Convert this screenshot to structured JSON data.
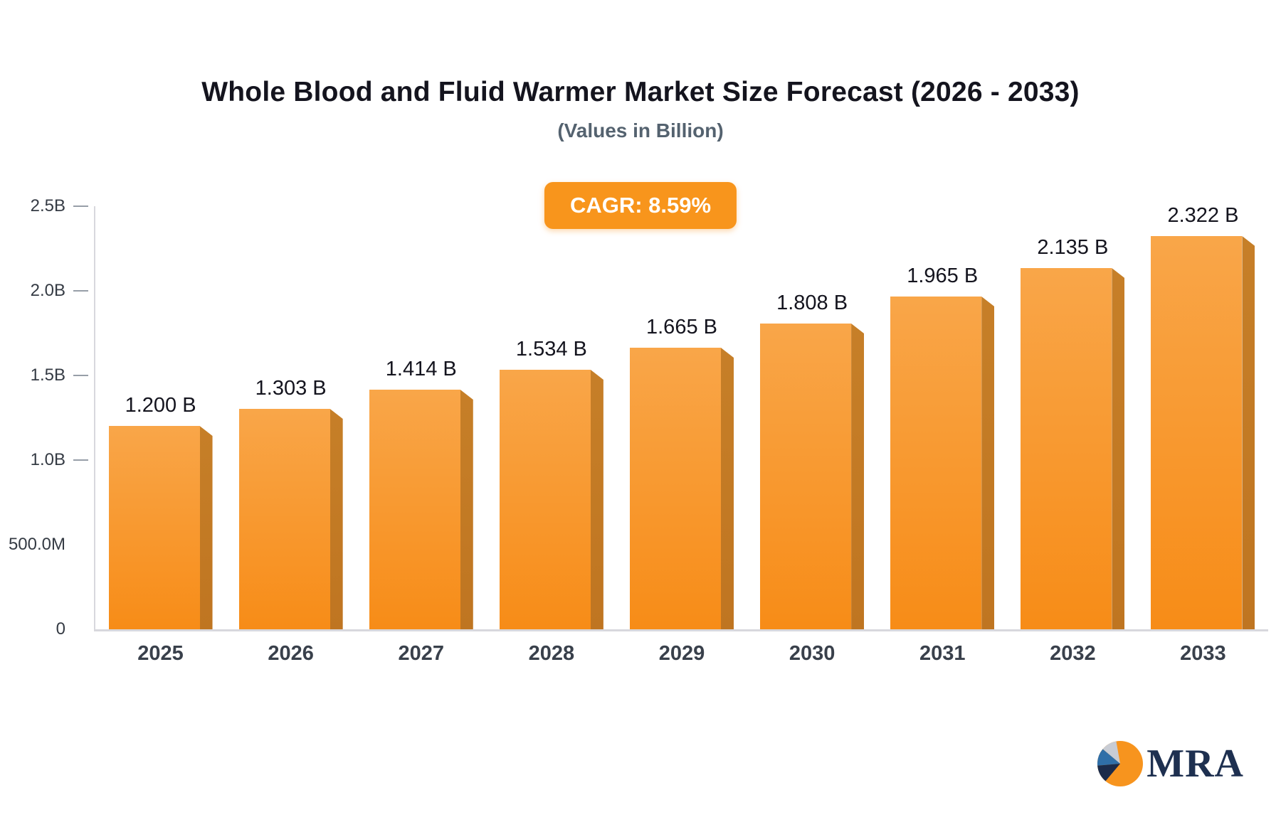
{
  "cagr_badge": {
    "label": "CAGR: 8.59%"
  },
  "logo": {
    "text": "MRA"
  },
  "colors": {
    "bar_top": "#F9A649",
    "bar_bottom": "#F78C17",
    "bar_side": "#C67F28",
    "badge_bg": "#F8951C",
    "badge_text": "#FFFFFF",
    "title": "#14141E",
    "subtitle": "#54626F",
    "axis_line": "#D8D8DD",
    "tick_text": "#353B44",
    "category_text": "#39404B",
    "logo_text": "#1E3050",
    "logo_orange": "#F7941E",
    "logo_blue": "#2F6FA8",
    "logo_navy": "#1B2B4A",
    "logo_gray": "#C8CCD4"
  },
  "chart_data": {
    "type": "bar",
    "title": "Whole Blood and Fluid Warmer Market Size Forecast (2026 - 2033)",
    "subtitle": "(Values in Billion)",
    "categories": [
      "2025",
      "2026",
      "2027",
      "2028",
      "2029",
      "2030",
      "2031",
      "2032",
      "2033"
    ],
    "values": [
      1.2,
      1.303,
      1.414,
      1.534,
      1.665,
      1.808,
      1.965,
      2.135,
      2.322
    ],
    "value_labels": [
      "1.200 B",
      "1.303 B",
      "1.414 B",
      "1.534 B",
      "1.665 B",
      "1.808 B",
      "1.965 B",
      "2.135 B",
      "2.322 B"
    ],
    "xlabel": "",
    "ylabel": "",
    "ylim": [
      0,
      2.5
    ],
    "yticks": [
      {
        "value": 0,
        "label": "0",
        "dash": false
      },
      {
        "value": 0.5,
        "label": "500.0M",
        "dash": false
      },
      {
        "value": 1.0,
        "label": "1.0B",
        "dash": true
      },
      {
        "value": 1.5,
        "label": "1.5B",
        "dash": true
      },
      {
        "value": 2.0,
        "label": "2.0B",
        "dash": true
      },
      {
        "value": 2.5,
        "label": "2.5B",
        "dash": true
      }
    ],
    "grid": false,
    "legend": false,
    "annotations": [
      "CAGR: 8.59%"
    ]
  }
}
